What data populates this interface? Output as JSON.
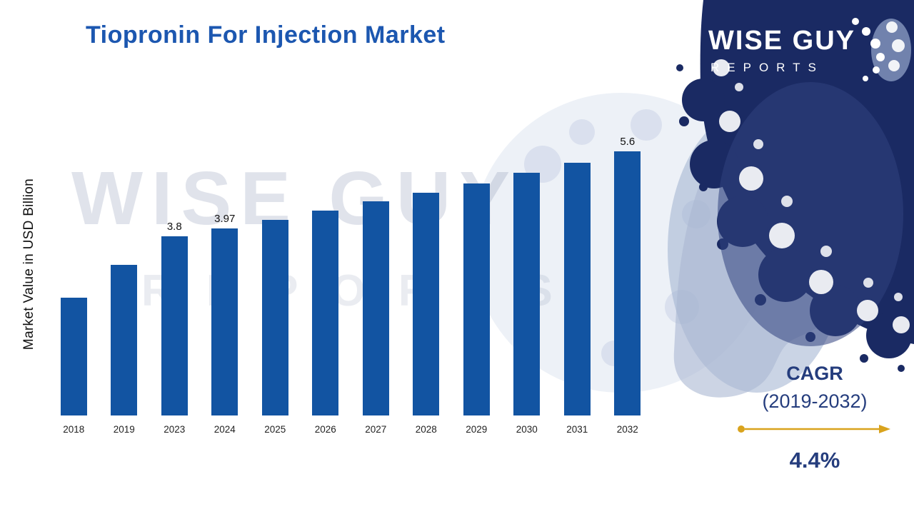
{
  "title": "Tiopronin For Injection Market",
  "brand": {
    "name_line1": "WISE GUY",
    "name_line2": "REPORTS"
  },
  "watermark": {
    "line1": "WISE GUY",
    "line2": "REPORTS"
  },
  "cagr": {
    "label": "CAGR",
    "range": "(2019-2032)",
    "value": "4.4%"
  },
  "colors": {
    "bar_blue": "#1254a2",
    "title_blue": "#1c57b0",
    "navy": "#1a2a63",
    "gold": "#d9a31d",
    "cagr_navy": "#253d7d"
  },
  "chart_data": {
    "type": "bar",
    "title": "Tiopronin For Injection Market",
    "ylabel": "Market Value in USD Billion",
    "xlabel": "",
    "categories": [
      "2018",
      "2019",
      "2023",
      "2024",
      "2025",
      "2026",
      "2027",
      "2028",
      "2029",
      "2030",
      "2031",
      "2032"
    ],
    "values": [
      2.5,
      3.2,
      3.8,
      3.97,
      4.15,
      4.35,
      4.54,
      4.73,
      4.92,
      5.15,
      5.37,
      5.6
    ],
    "bar_labels": [
      "",
      "",
      "3.8",
      "3.97",
      "",
      "",
      "",
      "",
      "",
      "",
      "",
      "5.6"
    ],
    "ylim": [
      0,
      6
    ],
    "grid": false,
    "legend": "none"
  }
}
